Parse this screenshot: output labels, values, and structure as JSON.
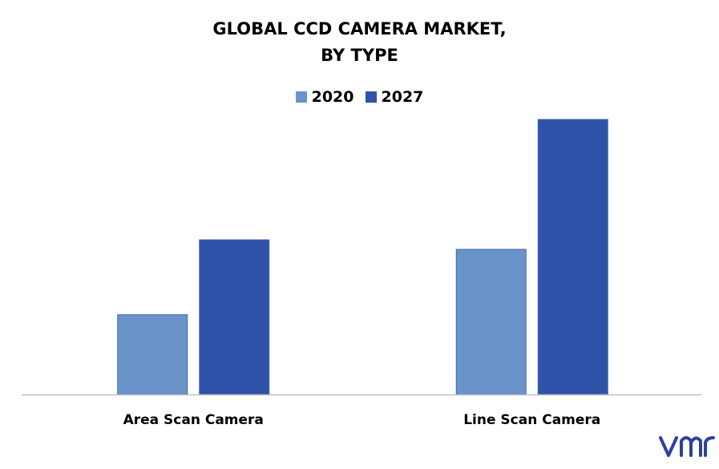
{
  "chart_data": {
    "type": "bar",
    "title": "GLOBAL CCD CAMERA MARKET,",
    "subtitle": "BY TYPE",
    "categories": [
      "Area Scan Camera",
      "Line Scan Camera"
    ],
    "series": [
      {
        "name": "2020",
        "values": [
          1.0,
          1.82
        ],
        "color": "#6a94c9"
      },
      {
        "name": "2027",
        "values": [
          1.94,
          3.45
        ],
        "color": "#2f53a8"
      }
    ],
    "xlabel": "",
    "ylabel": "",
    "ylim": [
      0,
      3.5
    ],
    "grid": false,
    "legend_position": "top-center"
  },
  "colors": {
    "axis": "#bfbfbf",
    "logo": "#2f3f9e"
  },
  "logo": {
    "icon": "vmr-logo-icon"
  }
}
